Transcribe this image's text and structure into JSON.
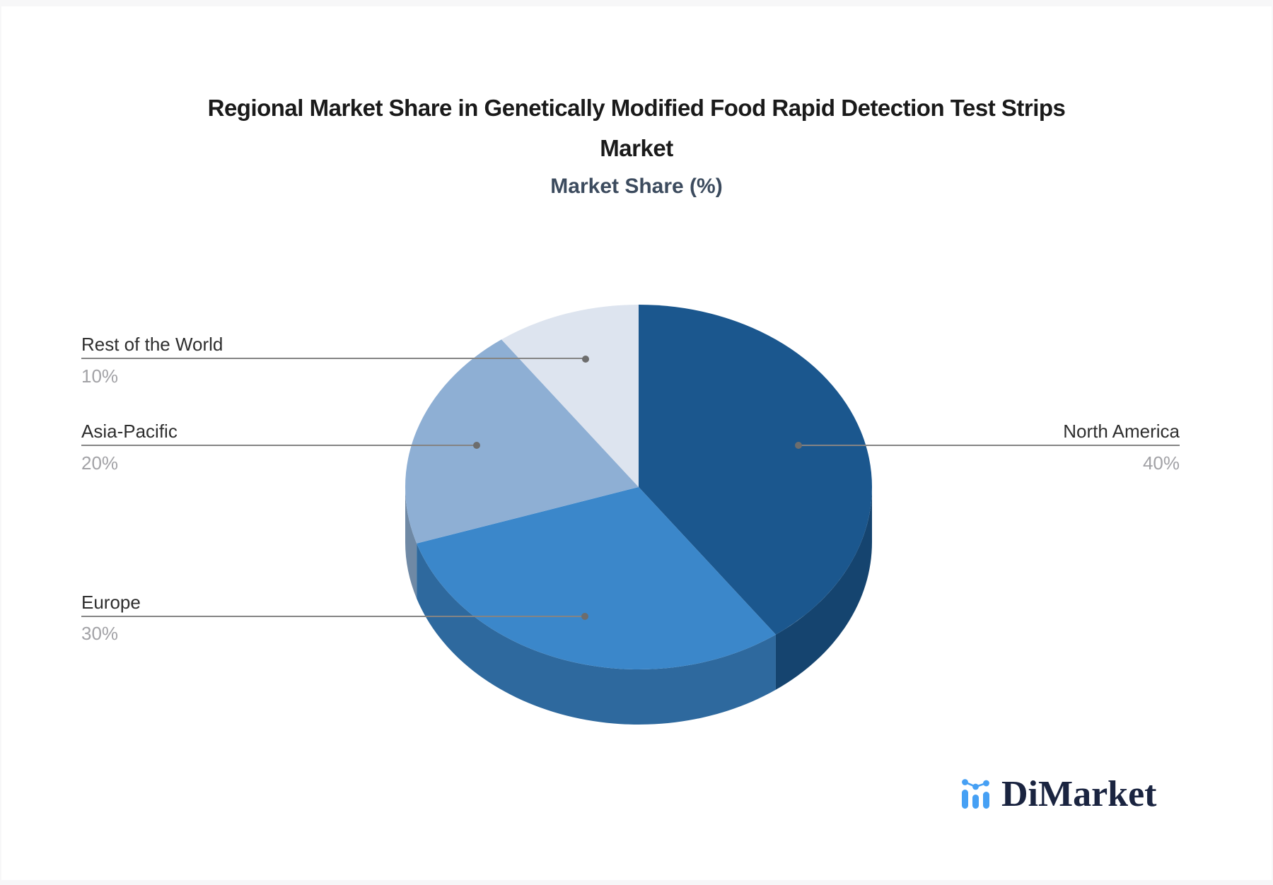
{
  "page": {
    "background_color": "#f7f7f8",
    "card_color": "#ffffff"
  },
  "header": {
    "title_line1": "Regional Market Share in Genetically Modified Food Rapid Detection Test Strips",
    "title_line2": "Market",
    "subtitle": "Market Share (%)"
  },
  "chart_data": {
    "type": "pie",
    "style": "3d",
    "title": "Regional Market Share in Genetically Modified Food Rapid Detection Test Strips Market",
    "subtitle": "Market Share (%)",
    "unit": "%",
    "start_angle_deg": 0,
    "direction": "clockwise",
    "legend": "none",
    "slices": [
      {
        "label": "North America",
        "value": 40,
        "display": "40%",
        "color": "#1b578e",
        "label_side": "right"
      },
      {
        "label": "Europe",
        "value": 30,
        "display": "30%",
        "color": "#3b87ca",
        "label_side": "left"
      },
      {
        "label": "Asia-Pacific",
        "value": 20,
        "display": "20%",
        "color": "#8eafd4",
        "label_side": "left"
      },
      {
        "label": "Rest of the World",
        "value": 10,
        "display": "10%",
        "color": "#dde4ef",
        "label_side": "left"
      }
    ],
    "leader_line_color": "#848484",
    "leader_dot_color": "#6d6d6d",
    "label_text_color": "#2e2e2e",
    "value_text_color": "#a2a2a6"
  },
  "branding": {
    "logo_text": "DiMarket",
    "logo_text_color": "#1a2440",
    "logo_icon": "bar-chart-logo-icon",
    "logo_icon_color": "#46a0f4"
  }
}
